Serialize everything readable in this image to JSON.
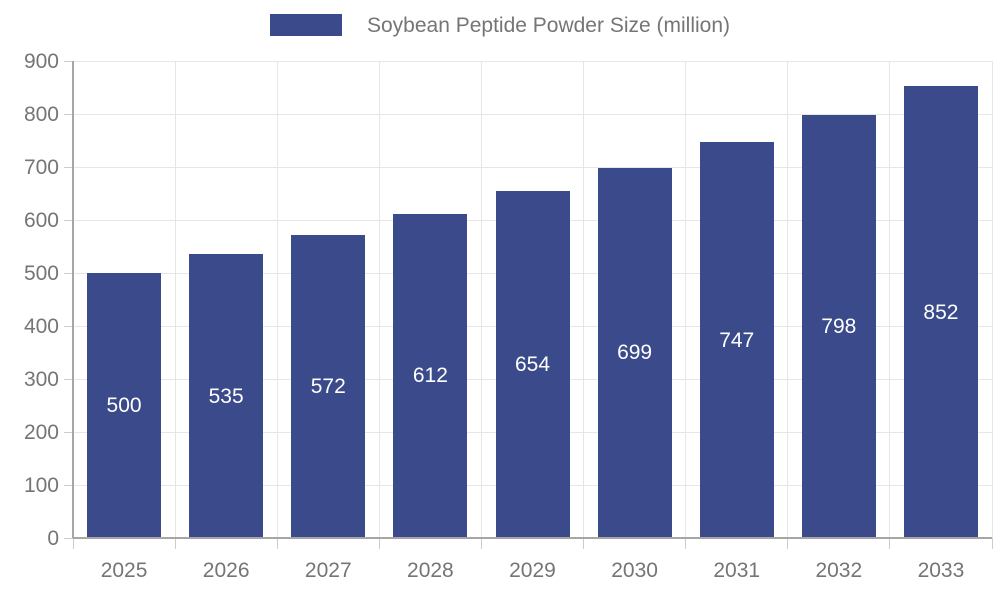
{
  "chart_data": {
    "type": "bar",
    "title": "Soybean Peptide Powder Size (million)",
    "categories": [
      "2025",
      "2026",
      "2027",
      "2028",
      "2029",
      "2030",
      "2031",
      "2032",
      "2033"
    ],
    "values": [
      500,
      535,
      572,
      612,
      654,
      699,
      747,
      798,
      852
    ],
    "xlabel": "",
    "ylabel": "",
    "ylim": [
      0,
      900
    ],
    "ytick_step": 100,
    "ytick_labels": [
      "0",
      "100",
      "200",
      "300",
      "400",
      "500",
      "600",
      "700",
      "800",
      "900"
    ],
    "grid": true,
    "legend_position": "top-center",
    "value_labels_visible": true,
    "colors": {
      "bar": "#3A4A8A",
      "grid": "#E6E6E6",
      "axis": "#A6A6A6",
      "tick": "#CCCCCC",
      "text": "#757575",
      "value_label": "#FFFFFF",
      "background": "#FFFFFF"
    }
  }
}
